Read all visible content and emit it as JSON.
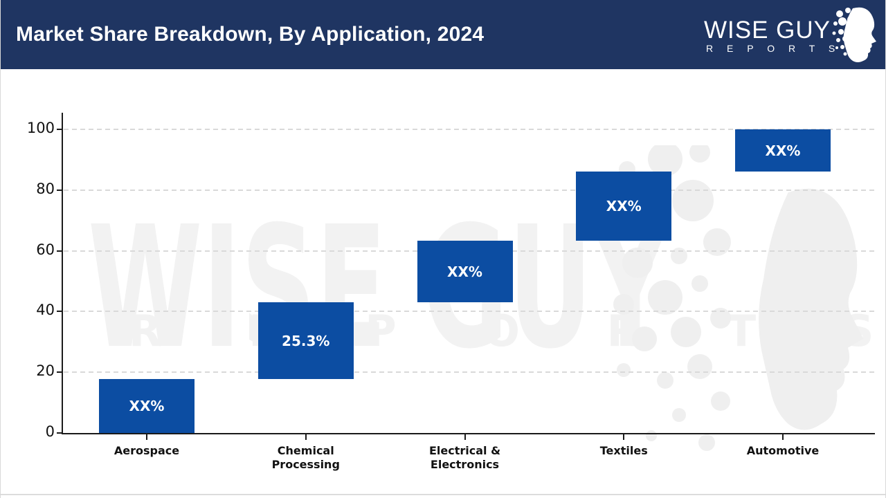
{
  "header": {
    "title": "Market Share Breakdown, By Application, 2024",
    "logo": {
      "line1": "WISE GUY",
      "line2": "R E P O R T S"
    }
  },
  "watermark": {
    "line1": "WISE GUY",
    "line2": "R E P O R T S"
  },
  "colors": {
    "header_background": "#1f3562",
    "bar": "#0c4da2",
    "bar_label_text": "#ffffff",
    "axis": "#1a1a1a",
    "gridline": "#d9d9d9",
    "watermark": "#f2f2f2"
  },
  "chart_data": {
    "type": "bar",
    "subtype": "waterfall",
    "title": "Market Share Breakdown, By Application, 2024",
    "categories": [
      "Aerospace",
      "Chemical Processing",
      "Electrical & Electronics",
      "Textiles",
      "Automotive"
    ],
    "segments": [
      {
        "category": "Aerospace",
        "start": 0,
        "end": 17.7,
        "label": "XX%"
      },
      {
        "category": "Chemical Processing",
        "start": 17.7,
        "end": 43.0,
        "label": "25.3%"
      },
      {
        "category": "Electrical & Electronics",
        "start": 43.0,
        "end": 63.3,
        "label": "XX%"
      },
      {
        "category": "Textiles",
        "start": 63.3,
        "end": 86.0,
        "label": "XX%"
      },
      {
        "category": "Automotive",
        "start": 86.0,
        "end": 100.0,
        "label": "XX%"
      }
    ],
    "xlabel": "",
    "ylabel": "",
    "ylim": [
      0,
      100
    ],
    "yticks": [
      0,
      20,
      40,
      60,
      80,
      100
    ],
    "grid": "horizontal-dashed",
    "legend": false
  }
}
